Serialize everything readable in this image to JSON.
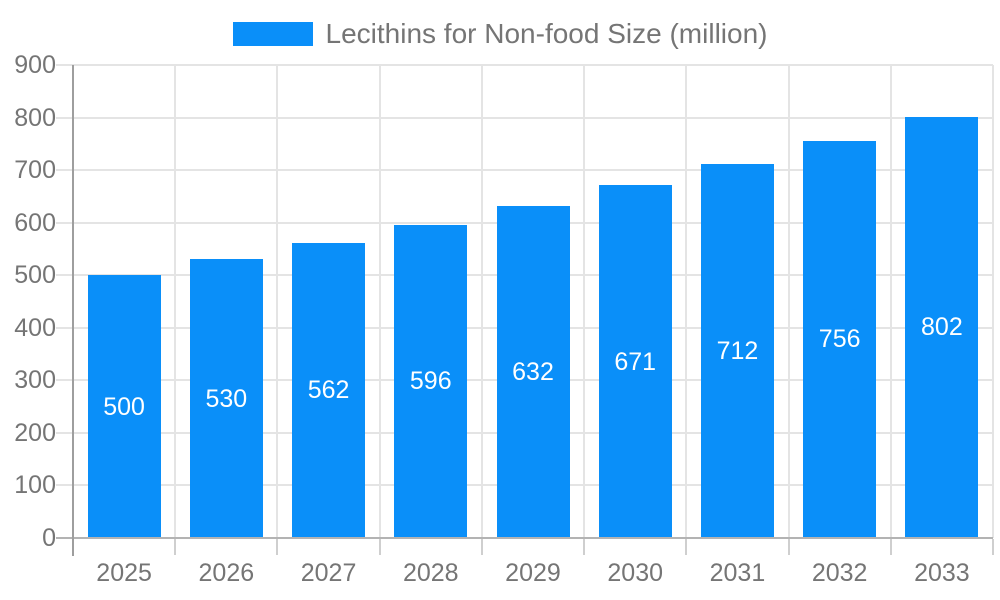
{
  "chart_data": {
    "type": "bar",
    "title": "Lecithins for Non-food Size (million)",
    "categories": [
      "2025",
      "2026",
      "2027",
      "2028",
      "2029",
      "2030",
      "2031",
      "2032",
      "2033"
    ],
    "values": [
      500,
      530,
      562,
      596,
      632,
      671,
      712,
      756,
      802
    ],
    "value_labels": [
      "500",
      "530",
      "562",
      "596",
      "632",
      "671",
      "712",
      "756",
      "802"
    ],
    "xlabel": "",
    "ylabel": "",
    "ylim": [
      0,
      900
    ],
    "y_ticks": [
      0,
      100,
      200,
      300,
      400,
      500,
      600,
      700,
      800,
      900
    ],
    "grid": true,
    "legend_position": "top",
    "value_label_position": "inside-center",
    "colors": {
      "bar": "#0a8ff9",
      "tick_text": "#757575",
      "legend_text": "#757575",
      "value_text": "#ffffff",
      "gridline": "#e4e4e4",
      "axis_line": "#9e9e9e",
      "baseline": "#b3b3b3",
      "x_tick_mark": "#cfcfcf",
      "background": "#ffffff"
    }
  },
  "legend": {
    "label": "Lecithins for Non-food Size (million)"
  }
}
